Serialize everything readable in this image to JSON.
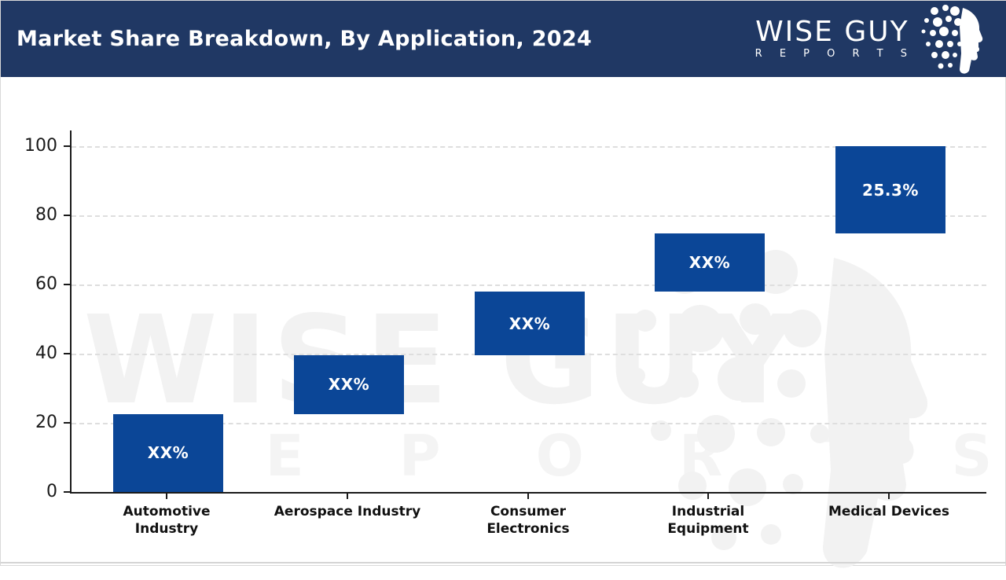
{
  "header": {
    "title": "Market Share Breakdown, By Application, 2024",
    "bg_color": "#203864",
    "logo": {
      "line1": "WISE GUY",
      "line2": "R E P O R T S"
    }
  },
  "watermark": {
    "line1": "WISE GUY",
    "line2": "R E P O R T S"
  },
  "chart_data": {
    "type": "bar",
    "subtype": "waterfall",
    "title": "Market Share Breakdown, By Application, 2024",
    "xlabel": "",
    "ylabel": "",
    "ylim": [
      0,
      100
    ],
    "y_ticks": [
      0,
      20,
      40,
      60,
      80,
      100
    ],
    "grid": "horizontal dashed",
    "legend": "none",
    "bar_color": "#0b4697",
    "axis_color": "#1a1a1a",
    "grid_color": "#dedede",
    "categories": [
      "Automotive Industry",
      "Aerospace Industry",
      "Consumer Electronics",
      "Industrial Equipment",
      "Medical Devices"
    ],
    "segments": [
      {
        "category": "Automotive Industry",
        "category_lines": [
          "Automotive",
          "Industry"
        ],
        "start": 0,
        "end": 22.6,
        "label": "XX%"
      },
      {
        "category": "Aerospace Industry",
        "category_lines": [
          "Aerospace Industry"
        ],
        "start": 22.6,
        "end": 39.5,
        "label": "XX%"
      },
      {
        "category": "Consumer Electronics",
        "category_lines": [
          "Consumer",
          "Electronics"
        ],
        "start": 39.5,
        "end": 57.9,
        "label": "XX%"
      },
      {
        "category": "Industrial Equipment",
        "category_lines": [
          "Industrial",
          "Equipment"
        ],
        "start": 57.9,
        "end": 74.7,
        "label": "XX%"
      },
      {
        "category": "Medical Devices",
        "category_lines": [
          "Medical Devices"
        ],
        "start": 74.7,
        "end": 100,
        "label": "25.3%"
      }
    ]
  }
}
